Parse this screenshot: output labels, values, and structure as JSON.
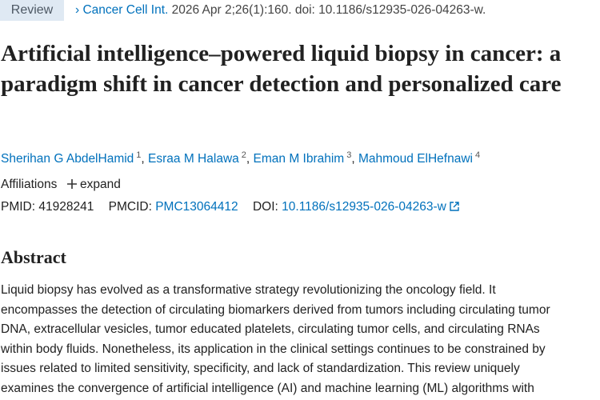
{
  "header": {
    "badge": "Review",
    "journal": "Cancer Cell Int.",
    "citation": "2026 Apr 2;26(1):160. doi: 10.1186/s12935-026-04263-w."
  },
  "title": "Artificial intelligence–powered liquid biopsy in cancer: a paradigm shift in cancer detection and personalized care",
  "authors": [
    {
      "name": "Sherihan G AbdelHamid",
      "aff": "1",
      "sep": ","
    },
    {
      "name": "Esraa M Halawa",
      "aff": "2",
      "sep": ","
    },
    {
      "name": "Eman M Ibrahim",
      "aff": "3",
      "sep": ","
    },
    {
      "name": "Mahmoud ElHefnawi",
      "aff": "4"
    }
  ],
  "affiliations": {
    "label": "Affiliations",
    "toggle": "expand"
  },
  "identifiers": {
    "pmid_label": "PMID:",
    "pmid": "41928241",
    "pmcid_label": "PMCID:",
    "pmcid": "PMC13064412",
    "doi_label": "DOI:",
    "doi": "10.1186/s12935-026-04263-w"
  },
  "abstract": {
    "heading": "Abstract",
    "lines": [
      "Liquid biopsy has evolved as a transformative strategy revolutionizing the oncology field. It",
      "encompasses the detection of circulating biomarkers derived from tumors including circulating tumor",
      "DNA, extracellular vesicles, tumor educated platelets, circulating tumor cells, and circulating RNAs",
      "within body fluids. Nonetheless, its application in the clinical settings continues to be constrained by",
      "issues related to limited sensitivity, specificity, and lack of standardization. This review uniquely",
      "examines the convergence of artificial intelligence (AI) and machine learning (ML) algorithms with"
    ]
  }
}
